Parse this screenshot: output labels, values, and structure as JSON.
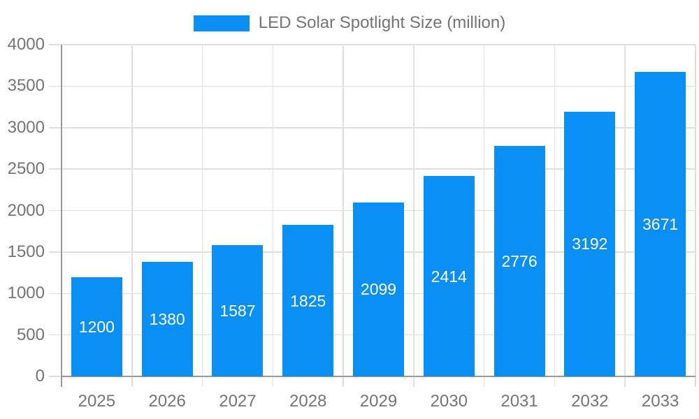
{
  "legend": {
    "label": "LED Solar Spotlight Size (million)"
  },
  "chart_data": {
    "type": "bar",
    "title": "LED Solar Spotlight Size (million)",
    "categories": [
      "2025",
      "2026",
      "2027",
      "2028",
      "2029",
      "2030",
      "2031",
      "2032",
      "2033"
    ],
    "values": [
      1200,
      1380,
      1587,
      1825,
      2099,
      2414,
      2776,
      3192,
      3671
    ],
    "series": [
      {
        "name": "LED Solar Spotlight Size (million)",
        "values": [
          1200,
          1380,
          1587,
          1825,
          2099,
          2414,
          2776,
          3192,
          3671
        ]
      }
    ],
    "xlabel": "",
    "ylabel": "",
    "ylim": [
      0,
      4000
    ],
    "ytick_step": 500,
    "yticks": [
      0,
      500,
      1000,
      1500,
      2000,
      2500,
      3000,
      3500,
      4000
    ],
    "grid": true,
    "legend_position": "top-center",
    "value_labels": "inside-center",
    "colors": {
      "bar": "#0a90f4",
      "grid": "#e0e0e0",
      "axis": "#999999",
      "label": "#757575",
      "value_label": "#ffffff"
    }
  }
}
